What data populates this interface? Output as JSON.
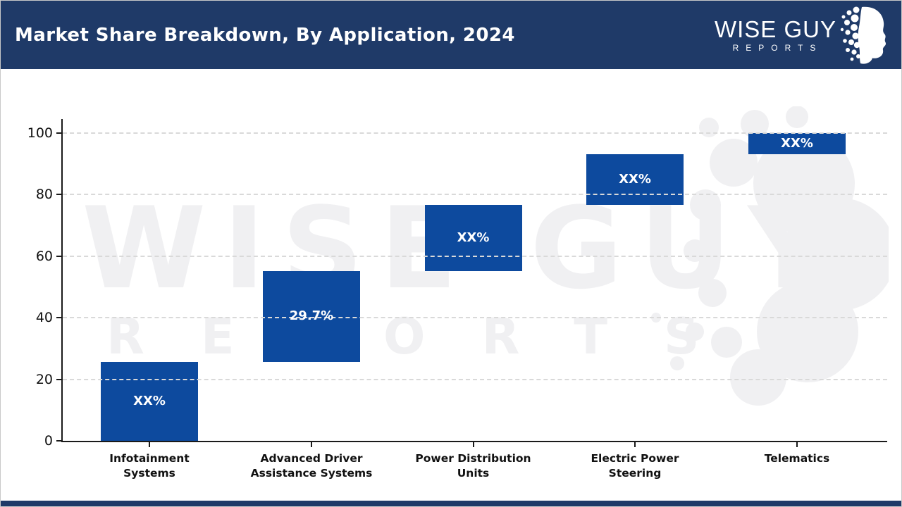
{
  "header": {
    "title": "Market Share Breakdown, By Application, 2024",
    "logo": {
      "brand": "WISE GUY",
      "sub": "REPORTS"
    }
  },
  "watermark": {
    "brand": "WISE GUY",
    "sub": "REPORTS"
  },
  "footer": {
    "note": ""
  },
  "colors": {
    "header_bg": "#1f3a68",
    "footer_bg": "#1f3a68",
    "bar": "#0d4a9e",
    "grid": "#d9d9d9",
    "axis": "#1a1a1a",
    "bar_label": "#ffffff",
    "watermark": "#f0f0f2"
  },
  "chart_data": {
    "type": "bar",
    "subtype": "floating-waterfall",
    "title": "Market Share Breakdown, By Application, 2024",
    "xlabel": "",
    "ylabel": "",
    "ylim": [
      0,
      104
    ],
    "yticks": [
      0,
      20,
      40,
      60,
      80,
      100
    ],
    "grid": "horizontal-dashed",
    "legend": "none",
    "categories": [
      [
        "Infotainment",
        "Systems"
      ],
      [
        "Advanced Driver",
        "Assistance Systems"
      ],
      [
        "Power Distribution",
        "Units"
      ],
      [
        "Electric Power",
        "Steering"
      ],
      [
        "Telematics"
      ]
    ],
    "segments": [
      {
        "label": "XX%",
        "start": 0,
        "end": 25.5,
        "value": 25.5
      },
      {
        "label": "29.7%",
        "start": 25.5,
        "end": 55.2,
        "value": 29.7
      },
      {
        "label": "XX%",
        "start": 55.2,
        "end": 76.6,
        "value": 21.4
      },
      {
        "label": "XX%",
        "start": 76.6,
        "end": 93.1,
        "value": 16.5
      },
      {
        "label": "XX%",
        "start": 93.1,
        "end": 100,
        "value": 6.9
      }
    ]
  }
}
